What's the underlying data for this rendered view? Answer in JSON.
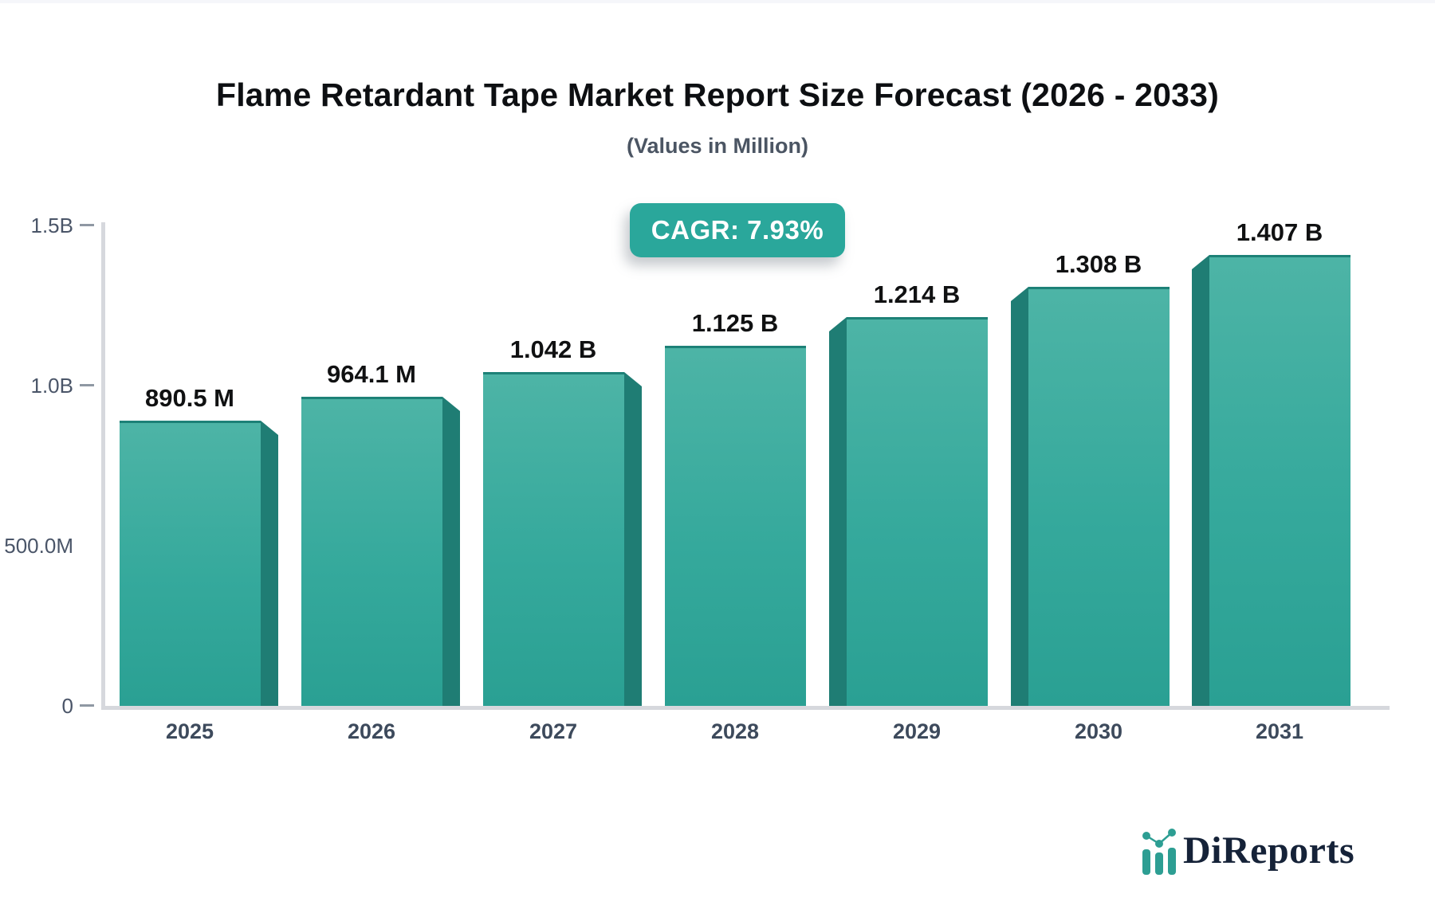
{
  "header": {
    "title": "Flame Retardant Tape Market Report Size Forecast (2026 - 2033)",
    "subtitle": "(Values in Million)"
  },
  "badge": {
    "label": "CAGR: 7.93%"
  },
  "chart_data": {
    "type": "bar",
    "title": "Flame Retardant Tape Market Report Size Forecast (2026 - 2033)",
    "subtitle": "(Values in Million)",
    "cagr_percent": 7.93,
    "categories": [
      "2025",
      "2026",
      "2027",
      "2028",
      "2029",
      "2030",
      "2031"
    ],
    "values_millions": [
      890.5,
      964.1,
      1042,
      1125,
      1214,
      1308,
      1407
    ],
    "bar_labels": [
      "890.5 M",
      "964.1 M",
      "1.042 B",
      "1.125 B",
      "1.214 B",
      "1.308 B",
      "1.407 B"
    ],
    "y_ticks": [
      {
        "label": "1.5B",
        "value_millions": 1500,
        "dash": true
      },
      {
        "label": "1.0B",
        "value_millions": 1000,
        "dash": true
      },
      {
        "label": "500.0M",
        "value_millions": 500,
        "dash": false
      },
      {
        "label": "0",
        "value_millions": 0,
        "dash": true
      }
    ],
    "ylim_millions": [
      0,
      1500
    ],
    "grid": false,
    "legend": null,
    "colors": {
      "bar_face_top": "#4db4a6",
      "bar_face_bottom": "#2aa093",
      "bar_side": "#1f7d74",
      "bar_top_edge": "#1d8177",
      "badge_background": "#2aa79b",
      "badge_text": "#ffffff",
      "axis_line": "#d6d8dd",
      "tick_dash": "#8f98a3",
      "year_label_text": "#3d4a5c",
      "value_label_text": "#101112",
      "y_label_text": "#4a5568",
      "title_text": "#0d0f12",
      "subtitle_text": "#4b5563",
      "logo_text": "#152238",
      "logo_icon": "#2d9e93"
    }
  },
  "logo": {
    "text": "DiReports",
    "icon": "mini-bar-chart-icon"
  }
}
